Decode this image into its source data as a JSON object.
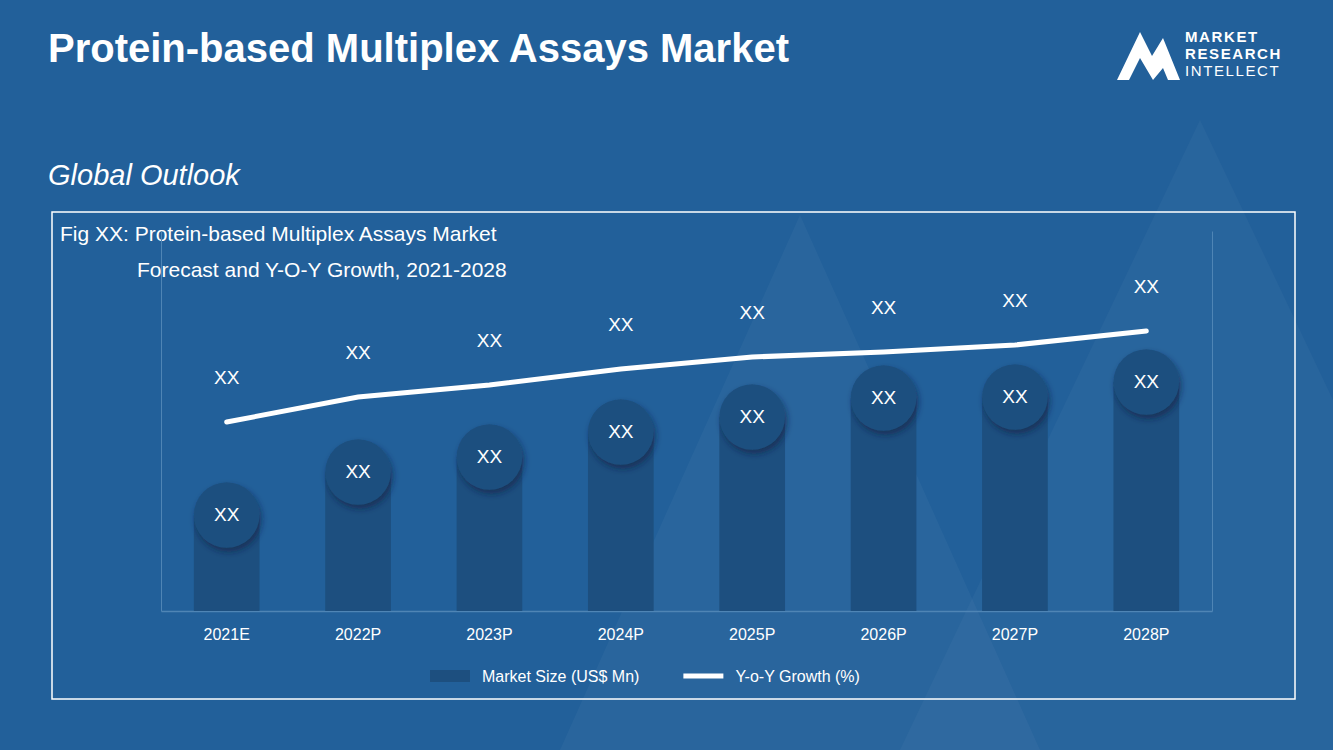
{
  "chart_data": {
    "type": "bar",
    "title": "Protein-based Multiplex Assays Market",
    "subtitle": "Global Outlook",
    "annotations": {
      "figure_title": [
        "Fig XX:  Protein-based Multiplex Assays Market",
        "Forecast and Y-O-Y Growth, 2021-2028"
      ],
      "logo": [
        "MARKET",
        "RESEARCH",
        "INTELLECT"
      ]
    },
    "categories": [
      "2021E",
      "2022P",
      "2023P",
      "2024P",
      "2025P",
      "2026P",
      "2027P",
      "2028P"
    ],
    "series": [
      {
        "name": "Market Size (US$ Mn)",
        "type": "bar",
        "color": "#1d4f7f",
        "values": [
          96,
          139,
          154,
          179,
          194,
          213,
          214,
          229
        ],
        "value_labels": [
          "XX",
          "XX",
          "XX",
          "XX",
          "XX",
          "XX",
          "XX",
          "XX"
        ]
      },
      {
        "name": "Y-o-Y Growth (%)",
        "type": "line",
        "color": "#ffffff",
        "axis": "y2",
        "values": [
          189,
          214,
          226,
          242,
          254,
          259,
          266,
          280
        ],
        "value_labels": [
          "XX",
          "XX",
          "XX",
          "XX",
          "XX",
          "XX",
          "XX",
          "XX"
        ]
      }
    ],
    "ylim": [
      0,
      380
    ],
    "y2lim": [
      0,
      380
    ],
    "tick_labels": "x",
    "data_labels": true,
    "grid": false,
    "legend": "bottom"
  }
}
